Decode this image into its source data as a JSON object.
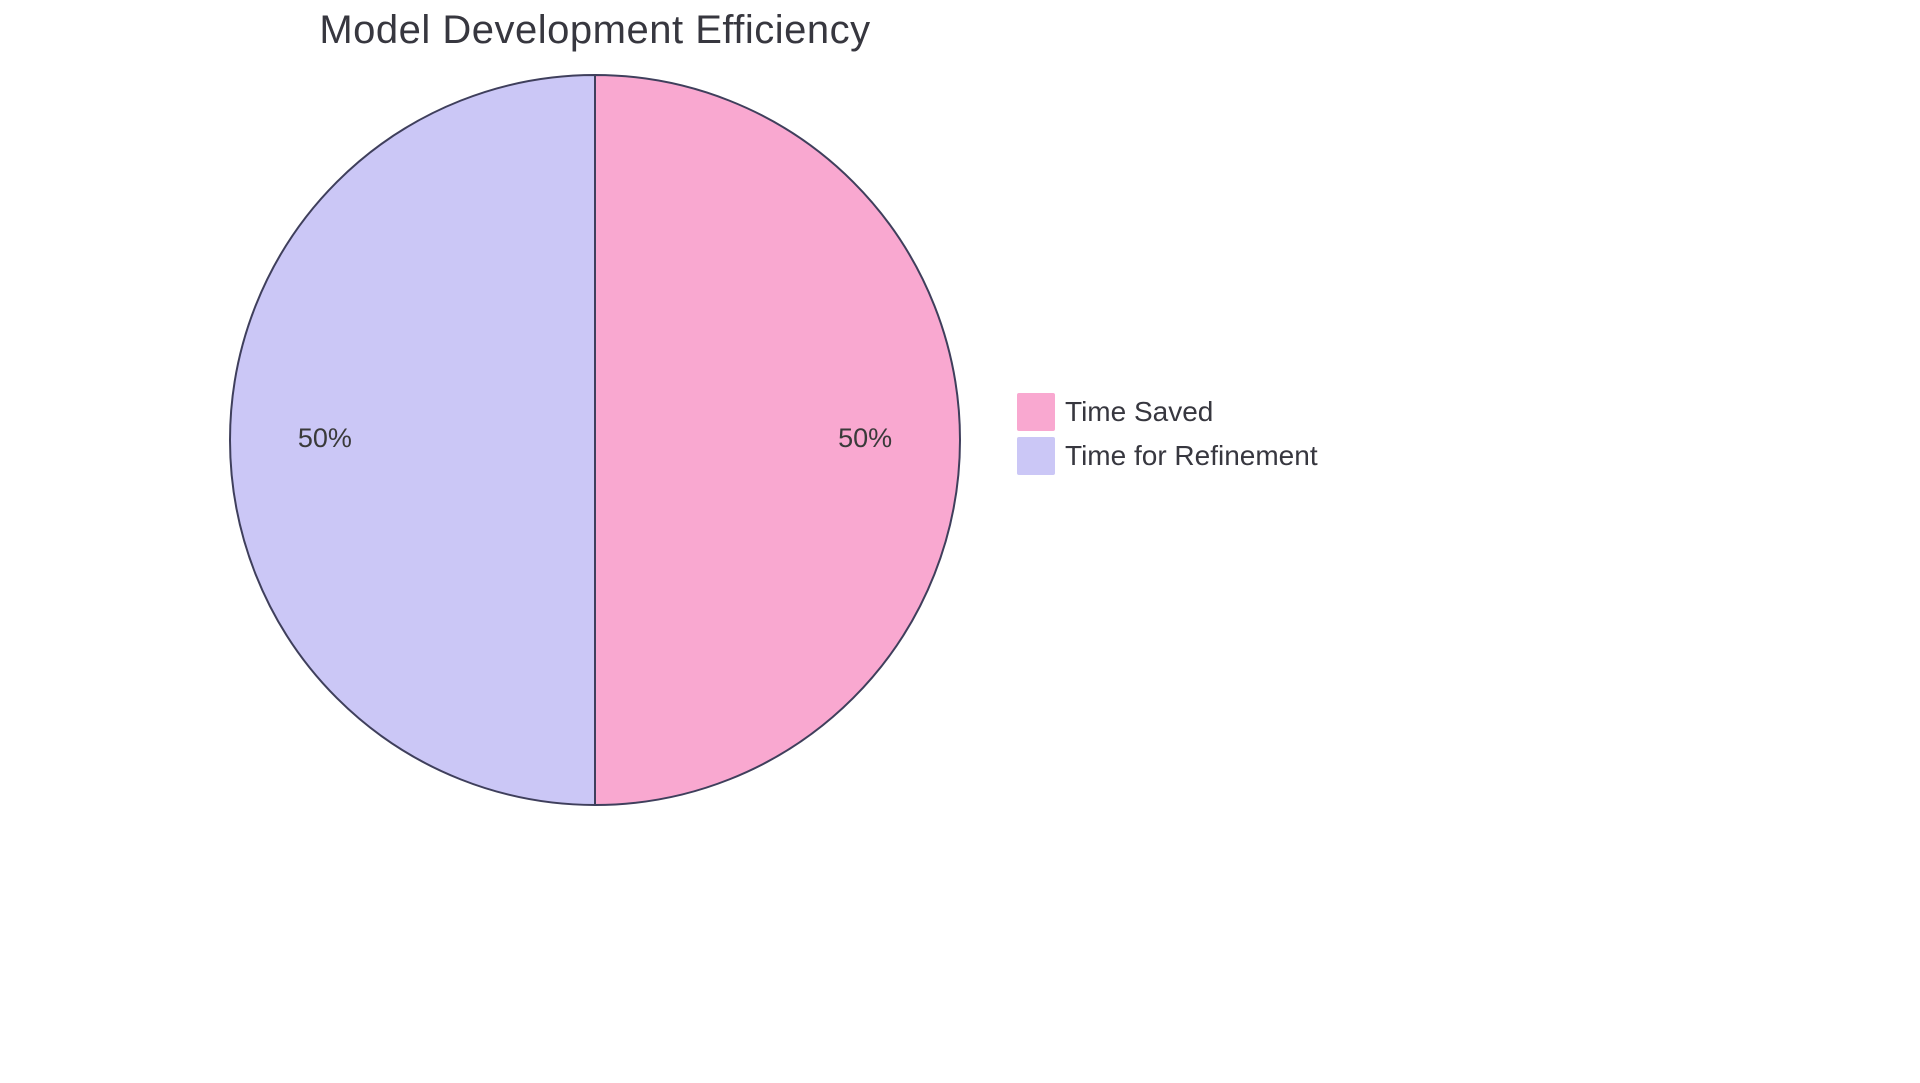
{
  "chart_data": {
    "type": "pie",
    "title": "Model Development Efficiency",
    "series": [
      {
        "label": "Time Saved",
        "value": 50,
        "percent_label": "50%",
        "color": "#F9A8D0"
      },
      {
        "label": "Time for Refinement",
        "value": 50,
        "percent_label": "50%",
        "color": "#CBC7F6"
      }
    ],
    "outline_color": "#3F3F5C",
    "text_color": "#3A3A3A",
    "legend_position": "right",
    "start_angle_deg": -90,
    "direction": "clockwise",
    "label_radius_fraction": 0.74
  }
}
